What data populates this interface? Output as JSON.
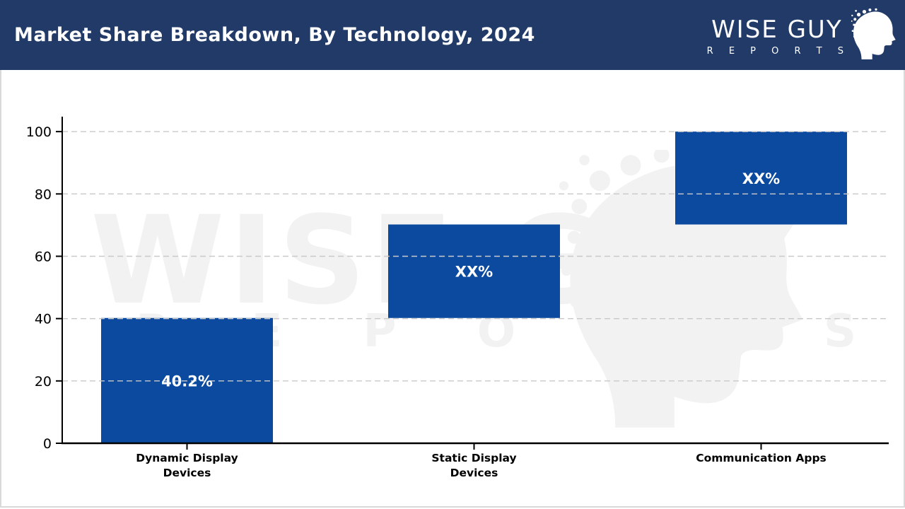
{
  "header": {
    "title": "Market Share Breakdown, By Technology, 2024",
    "logo_line1": "WISE GUY",
    "logo_line2": "R E P O R T S"
  },
  "watermark": {
    "line1": "WISE GUY",
    "line2": "R E P O R T S"
  },
  "colors": {
    "header_bg": "#213a67",
    "bar": "#0b4a9e",
    "bar_label": "#ffffff",
    "grid": "#c9c9c9",
    "axis": "#000000",
    "tick_label": "#000000",
    "watermark": "#f2f2f2"
  },
  "chart_data": {
    "type": "bar",
    "subtype": "stacked-waterfall",
    "title": "Market Share Breakdown, By Technology, 2024",
    "categories": [
      "Dynamic Display Devices",
      "Static Display Devices",
      "Communication Apps"
    ],
    "category_label_lines": [
      [
        "Dynamic Display",
        "Devices"
      ],
      [
        "Static Display",
        "Devices"
      ],
      [
        "Communication Apps"
      ]
    ],
    "bars": [
      {
        "category": "Dynamic Display Devices",
        "start": 0,
        "end": 40.2,
        "value_label": "40.2%"
      },
      {
        "category": "Static Display Devices",
        "start": 40.2,
        "end": 70.2,
        "value_label": "XX%"
      },
      {
        "category": "Communication Apps",
        "start": 70.2,
        "end": 100,
        "value_label": "XX%"
      }
    ],
    "yticks": [
      0,
      20,
      40,
      60,
      80,
      100
    ],
    "ylim": [
      0,
      104.8
    ],
    "xlabel": "",
    "ylabel": "",
    "grid": "horizontal-dashed-above-bars",
    "legend": "none"
  }
}
